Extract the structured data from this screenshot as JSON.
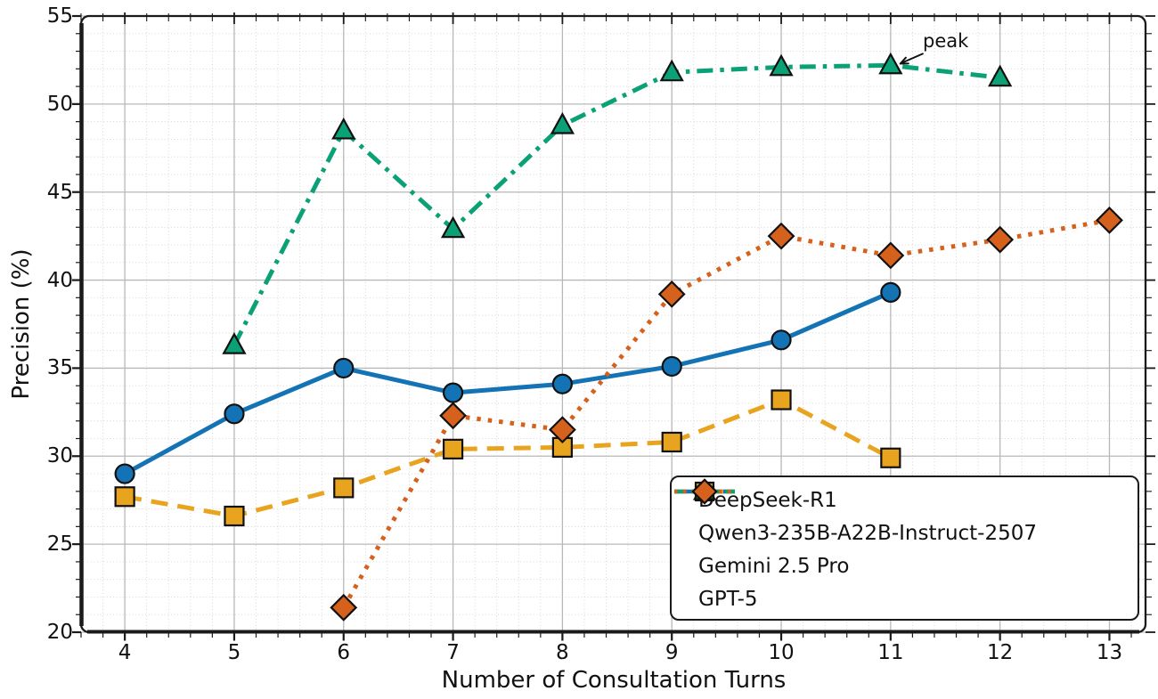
{
  "figure": {
    "background": "#ffffff",
    "text_color": "#111111",
    "grid_major_color": "#b8b8b8",
    "grid_minor_color": "#d2d2d2",
    "spine_color": "#1a1a1a",
    "marker_edge_color": "#111111"
  },
  "chart_data": {
    "type": "line",
    "title": "",
    "xlabel": "Number of Consultation Turns",
    "ylabel": "Precision (%)",
    "xlim": [
      3.6,
      13.33
    ],
    "ylim": [
      20,
      55
    ],
    "x_ticks": [
      4,
      5,
      6,
      7,
      8,
      9,
      10,
      11,
      12,
      13
    ],
    "y_ticks": [
      20,
      25,
      30,
      35,
      40,
      45,
      50,
      55
    ],
    "x_minor_step": 0.2,
    "y_minor_step": 1,
    "grid": "major solid + minor dotted",
    "legend_position": "lower right",
    "series": [
      {
        "name": "DeepSeek-R1",
        "color": "#1473B4",
        "linestyle": "solid",
        "marker": "circle",
        "x": [
          4,
          5,
          6,
          7,
          8,
          9,
          10,
          11
        ],
        "y": [
          29.0,
          32.4,
          35.0,
          33.6,
          34.1,
          35.1,
          36.6,
          39.3
        ]
      },
      {
        "name": "Qwen3-235B-A22B-Instruct-2507",
        "color": "#E9A41F",
        "linestyle": "dashed",
        "marker": "square",
        "x": [
          4,
          5,
          6,
          7,
          8,
          9,
          10,
          11
        ],
        "y": [
          27.7,
          26.6,
          28.2,
          30.4,
          30.5,
          30.8,
          33.2,
          29.9
        ]
      },
      {
        "name": "Gemini 2.5 Pro",
        "color": "#0AA177",
        "linestyle": "dashdot",
        "marker": "triangle",
        "x": [
          5,
          6,
          7,
          8,
          9,
          10,
          11,
          12
        ],
        "y": [
          36.3,
          48.5,
          42.9,
          48.8,
          51.8,
          52.1,
          52.2,
          51.5
        ]
      },
      {
        "name": "GPT-5",
        "color": "#D6611D",
        "linestyle": "dotted",
        "marker": "diamond",
        "x": [
          6,
          7,
          8,
          9,
          10,
          11,
          12,
          13
        ],
        "y": [
          21.4,
          32.3,
          31.5,
          39.2,
          42.5,
          41.4,
          42.3,
          43.4
        ]
      }
    ],
    "annotations": [
      {
        "text": "peak",
        "series": "Gemini 2.5 Pro",
        "x": 11,
        "y": 52.2
      }
    ]
  },
  "legend": {
    "items": [
      {
        "label": "DeepSeek-R1"
      },
      {
        "label": "Qwen3-235B-A22B-Instruct-2507"
      },
      {
        "label": "Gemini 2.5 Pro"
      },
      {
        "label": "GPT-5"
      }
    ]
  }
}
